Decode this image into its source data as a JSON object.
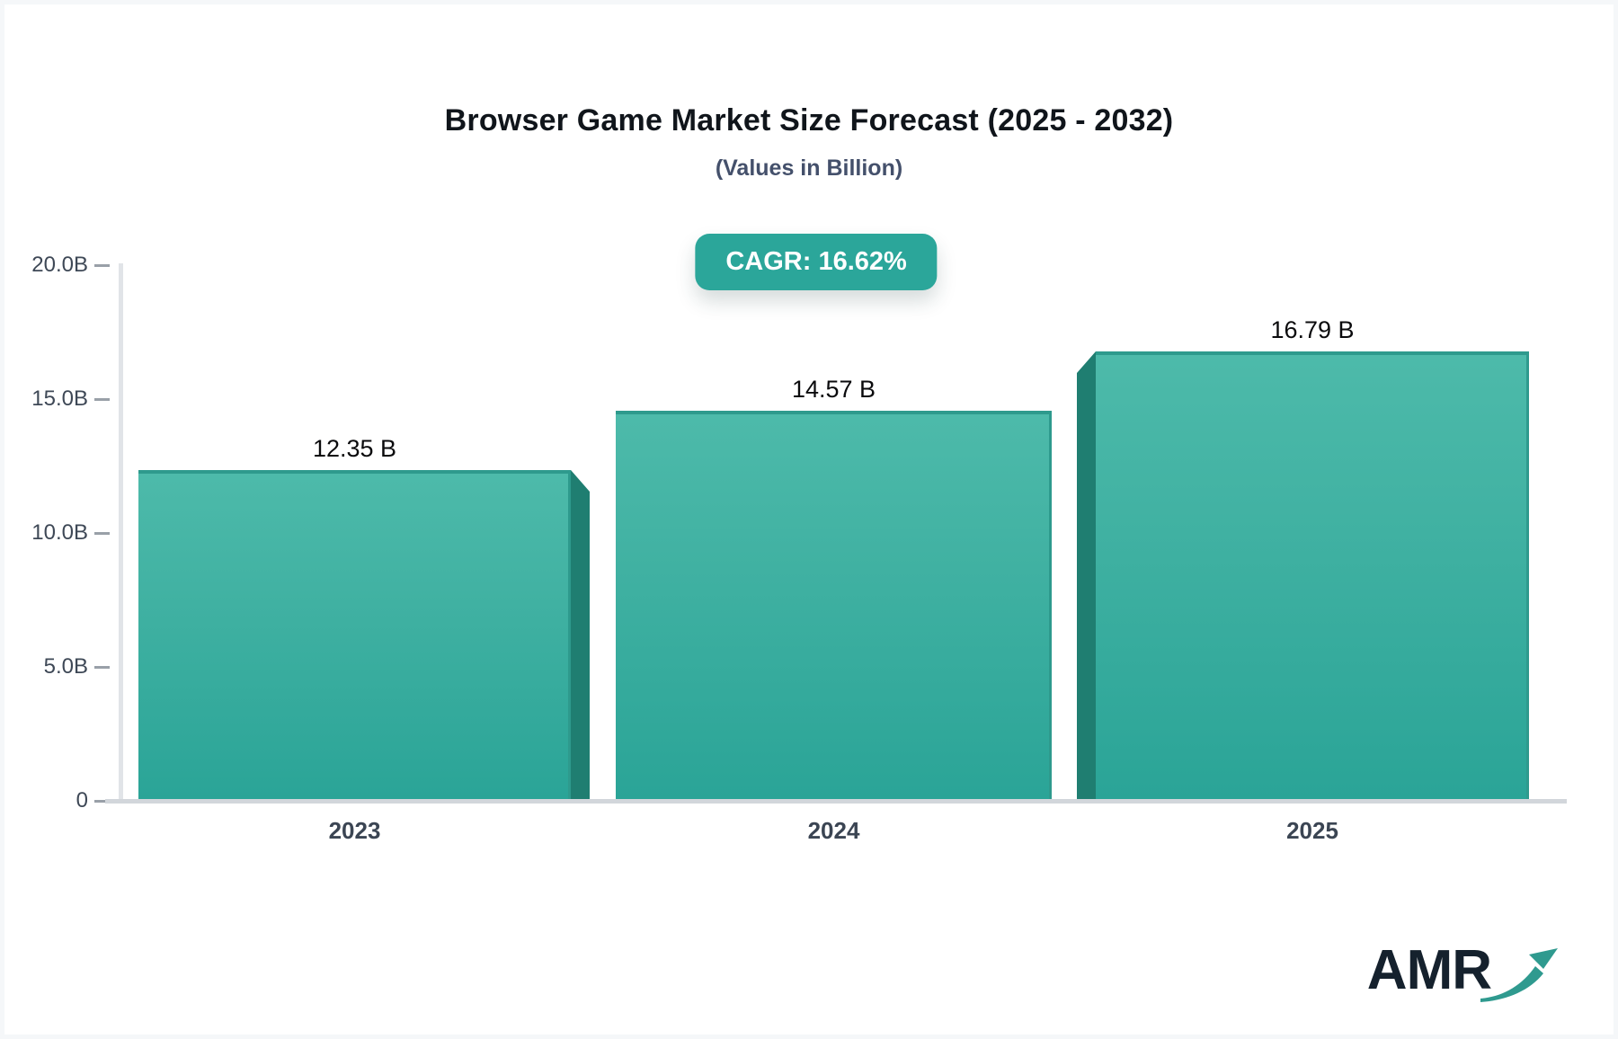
{
  "header": {
    "title": "Browser Game Market Size Forecast (2025 - 2032)",
    "subtitle": "(Values in Billion)"
  },
  "badge": {
    "label": "CAGR: 16.62%",
    "bg_color": "#2ba69a",
    "text_color": "#ffffff"
  },
  "chart_data": {
    "type": "bar",
    "title": "Browser Game Market Size Forecast (2025 - 2032)",
    "subtitle": "(Values in Billion)",
    "categories": [
      "2023",
      "2024",
      "2025"
    ],
    "values": [
      12.35,
      14.57,
      16.79
    ],
    "value_labels": [
      "12.35 B",
      "14.57 B",
      "16.79 B"
    ],
    "cagr_label": "CAGR: 16.62%",
    "xlabel": "",
    "ylabel": "",
    "ylim": [
      0,
      20
    ],
    "yticks": [
      "20.0B",
      "15.0B",
      "10.0B",
      "5.0B",
      "0"
    ],
    "grid": false,
    "legend": "none",
    "bar_color_top": "#4dbaaa",
    "bar_color_bottom": "#2aa497",
    "bar_side_color": "#1f7e71"
  },
  "logo": {
    "text": "AMR",
    "arrow_color": "#2f9a8f",
    "text_color": "#15212d"
  }
}
